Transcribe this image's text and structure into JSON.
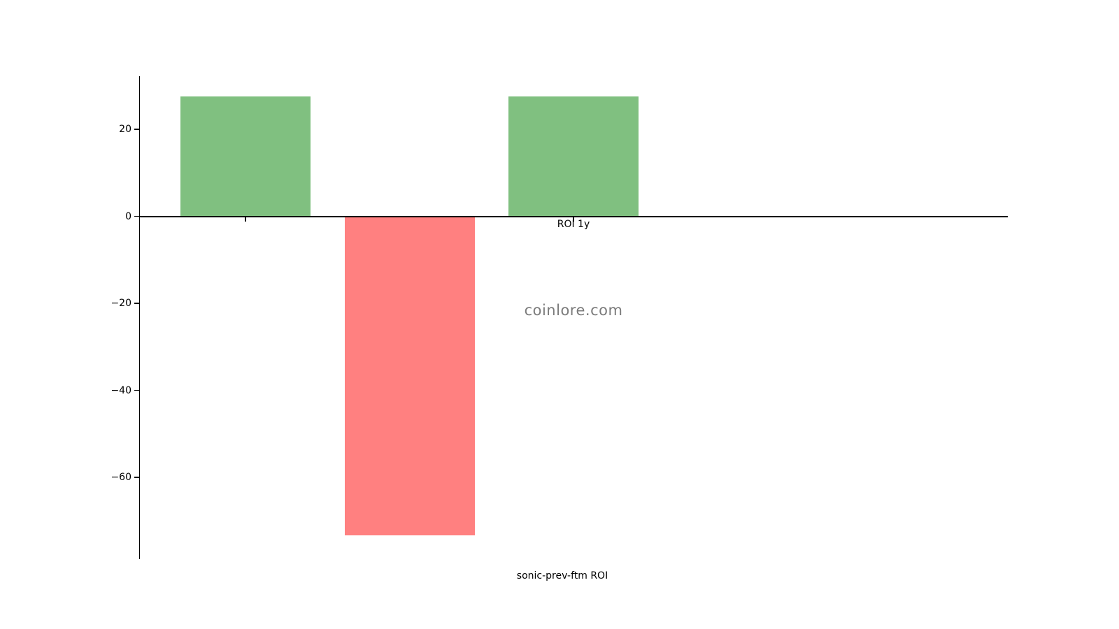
{
  "page": {
    "background": "#ffffff"
  },
  "watermark": {
    "text": "coinlore.com",
    "color": "#7b7b7b"
  },
  "chart_data": {
    "type": "bar",
    "title": "",
    "xlabel": "sonic-prev-ftm ROI",
    "ylabel": "",
    "categories": [
      "",
      "",
      "ROI 1y"
    ],
    "values": [
      27.5,
      -73.4,
      27.5
    ],
    "positive_color": "#80c080",
    "negative_color": "#ff8080",
    "yticks": [
      20,
      0,
      -20,
      -40,
      -60
    ],
    "ytick_labels": [
      "20",
      "0",
      "−20",
      "−40",
      "−60"
    ],
    "ylim": [
      -78.7,
      32.3
    ],
    "grid": false,
    "legend": false,
    "axis_color": "#000000",
    "bar_width_fraction": 0.8
  }
}
